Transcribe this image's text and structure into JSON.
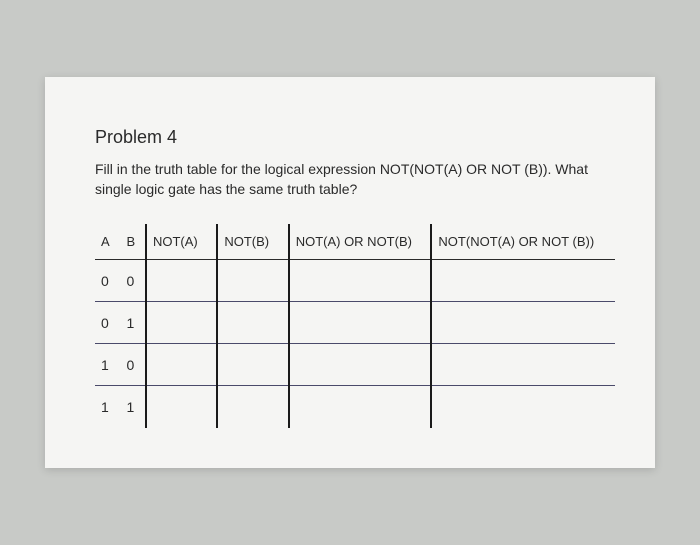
{
  "problem": {
    "title": "Problem 4",
    "question_line1": "Fill in the truth table for the logical expression NOT(NOT(A) OR NOT (B)). What",
    "question_line2": "single logic gate has the same truth table?"
  },
  "truth_table": {
    "columns": [
      "A",
      "B",
      "NOT(A)",
      "NOT(B)",
      "NOT(A) OR NOT(B)",
      "NOT(NOT(A) OR NOT (B))"
    ],
    "rows": [
      {
        "a": "0",
        "b": "0",
        "nota": "",
        "notb": "",
        "or_": "",
        "notor": ""
      },
      {
        "a": "0",
        "b": "1",
        "nota": "",
        "notb": "",
        "or_": "",
        "notor": ""
      },
      {
        "a": "1",
        "b": "0",
        "nota": "",
        "notb": "",
        "or_": "",
        "notor": ""
      },
      {
        "a": "1",
        "b": "1",
        "nota": "",
        "notb": "",
        "or_": "",
        "notor": ""
      }
    ],
    "border_color": "#4a4a6a",
    "vline_color": "#1a1a1a",
    "header_fontsize": 13,
    "cell_fontsize": 14
  },
  "colors": {
    "page_bg": "#f5f5f3",
    "outer_bg": "#c8cac7",
    "text": "#2a2a2a"
  }
}
